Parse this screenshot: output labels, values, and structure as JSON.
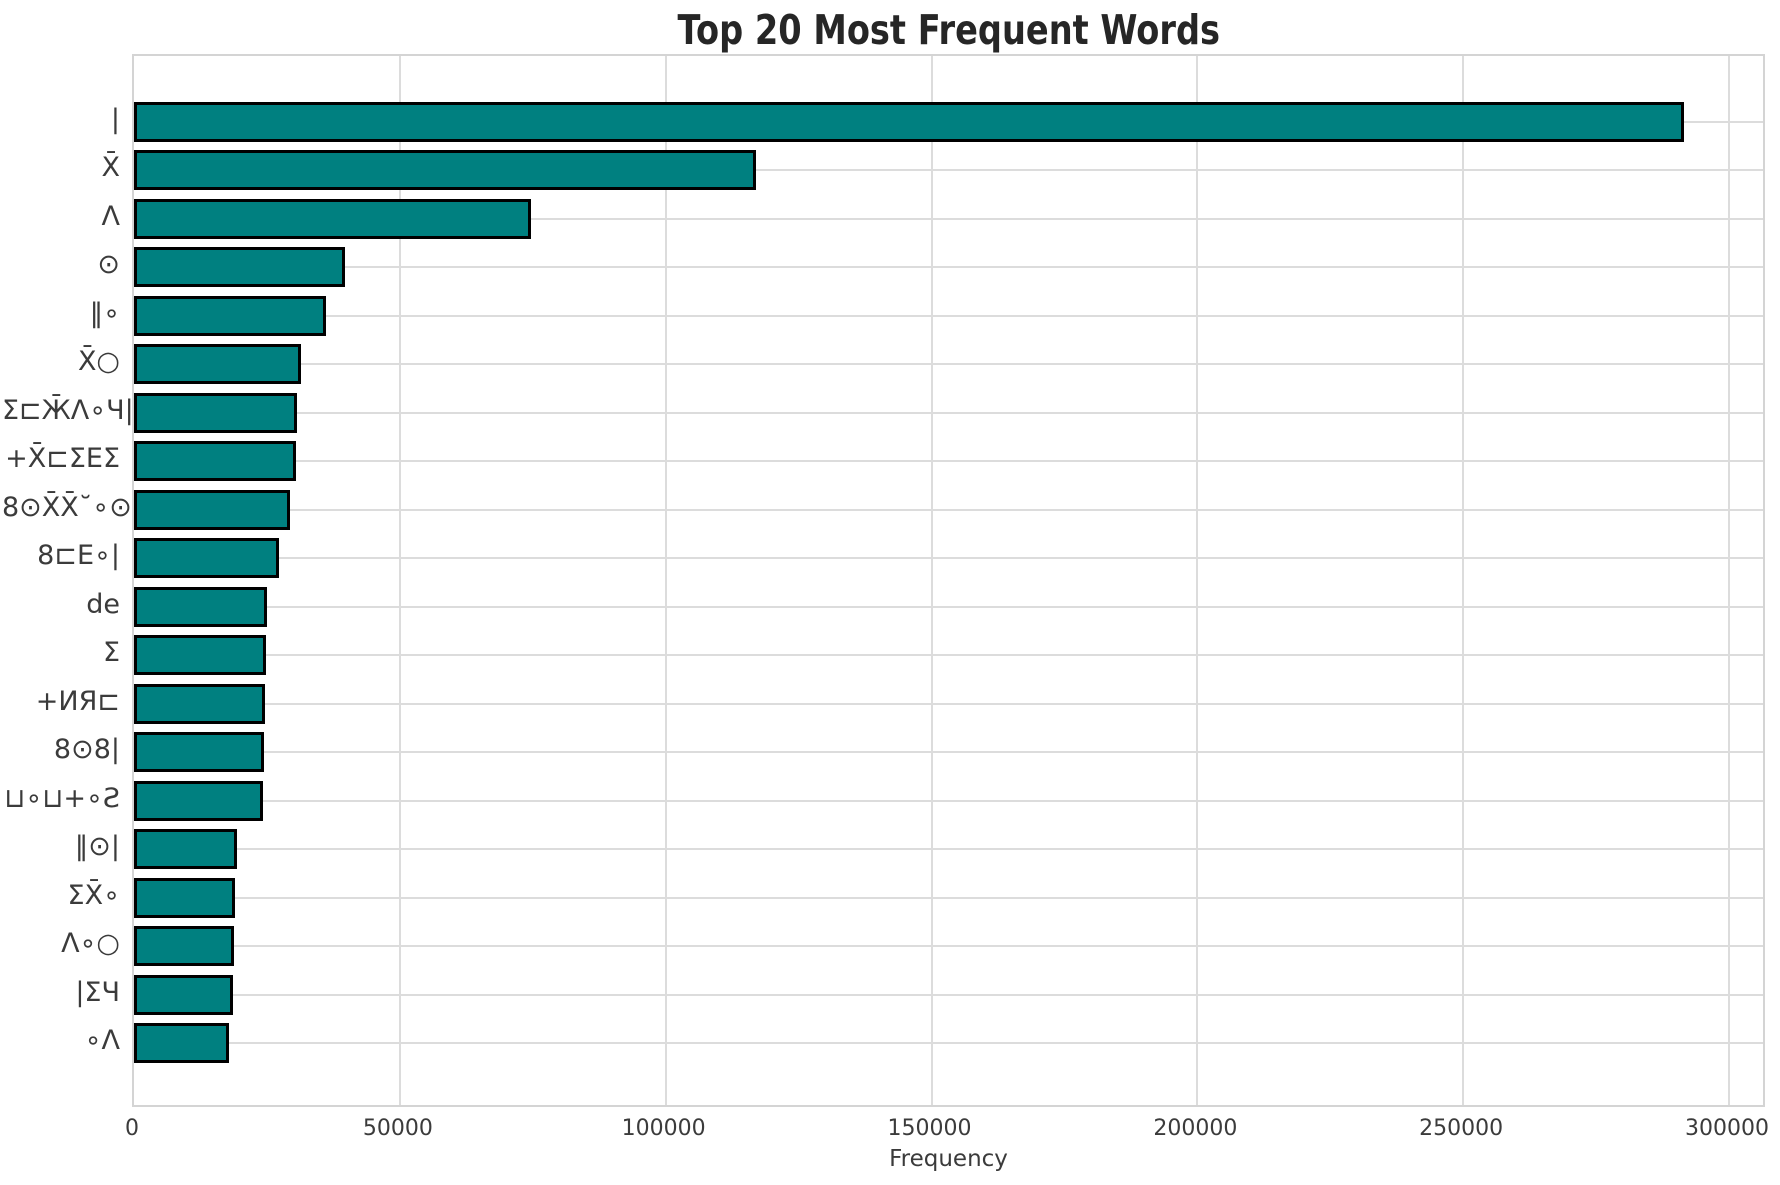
{
  "title": "Top 20 Most Frequent Words",
  "chart_data": {
    "type": "bar",
    "orientation": "horizontal",
    "title": "Top 20 Most Frequent Words",
    "xlabel": "Frequency",
    "ylabel": "",
    "xlim": [
      0,
      300000
    ],
    "xticks": [
      0,
      50000,
      100000,
      150000,
      200000,
      250000,
      300000
    ],
    "xtick_labels": [
      "0",
      "50000",
      "100000",
      "150000",
      "200000",
      "250000",
      "300000"
    ],
    "grid": true,
    "legend": false,
    "bar_color": "#008080",
    "bar_edge_color": "#000000",
    "categories": [
      "|",
      "X̄",
      "Λ",
      "⊙",
      "‖∘",
      "X̄○",
      "Σ⊏Ж̄Λ∘Ч|",
      "+X̄⊏ΣEΣ",
      "8⊙X̄X̄˘∘⊙",
      "8⊏E∘|",
      "de",
      "Σ",
      "+ИЯ⊏",
      "8⊙8|",
      "⊔∘⊔+∘Ƨ",
      "‖⊙|",
      "ΣX̄∘",
      "Λ∘○",
      "|ΣЧ",
      "∘Λ"
    ],
    "values": [
      291500,
      117000,
      74600,
      39700,
      36100,
      31400,
      30700,
      30400,
      29400,
      27200,
      25000,
      24800,
      24600,
      24400,
      24300,
      19400,
      19000,
      18800,
      18700,
      17800
    ]
  },
  "colors": {
    "background": "#ffffff",
    "bar_fill": "#008080",
    "bar_edge": "#000000",
    "gridline": "#dcdcdc",
    "spine": "#d4d4d4",
    "title_text": "#262626",
    "tick_text": "#3b3b3b"
  }
}
